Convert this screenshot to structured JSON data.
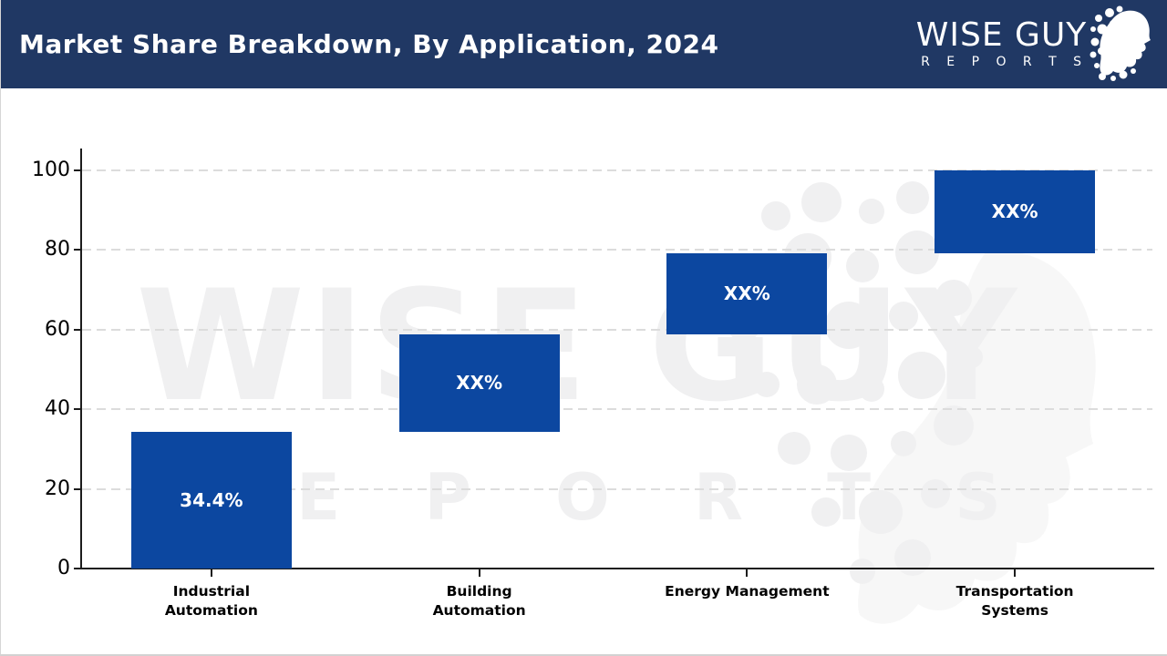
{
  "header": {
    "title": "Market Share Breakdown, By Application, 2024",
    "logo": {
      "name": "WISE GUY",
      "tagline": "R E P O R T S"
    }
  },
  "watermark": {
    "line1": "WISE GUY",
    "line2": "R E P O R T S"
  },
  "colors": {
    "header_bg": "#203864",
    "bar_fill": "#0c47a0",
    "bar_label_text": "#ffffff",
    "gridline": "#dcdcdc",
    "axis": "#1c1c1c",
    "tick_label": "#000000",
    "watermark": "#f0f0f1"
  },
  "chart_data": {
    "type": "bar",
    "subtype": "floating-waterfall",
    "title": "Market Share Breakdown, By Application, 2024",
    "categories": [
      "Industrial\nAutomation",
      "Building\nAutomation",
      "Energy Management",
      "Transportation\nSystems"
    ],
    "series": [
      {
        "name": "Market share",
        "segments": [
          {
            "category": "Industrial Automation",
            "start": 0,
            "end": 34.4,
            "label": "34.4%"
          },
          {
            "category": "Building Automation",
            "start": 34.4,
            "end": 58.8,
            "label": "XX%"
          },
          {
            "category": "Energy Management",
            "start": 58.8,
            "end": 79.1,
            "label": "XX%"
          },
          {
            "category": "Transportation Systems",
            "start": 79.1,
            "end": 100.0,
            "label": "XX%"
          }
        ]
      }
    ],
    "xlabel": "",
    "ylabel": "",
    "ylim": [
      0,
      105.7
    ],
    "yticks": [
      0,
      20,
      40,
      60,
      80,
      100
    ],
    "grid": {
      "axis": "y",
      "style": "dashed"
    },
    "legend": "none"
  }
}
